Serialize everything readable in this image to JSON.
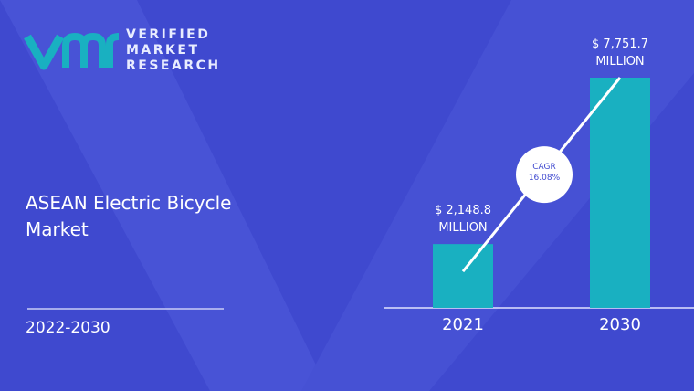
{
  "brand": {
    "line1": "VERIFIED",
    "line2": "MARKET",
    "line3": "RESEARCH"
  },
  "chart_data": {
    "type": "bar",
    "title": "ASEAN Electric Bicycle Market",
    "subtitle": "2022-2030",
    "categories": [
      "2021",
      "2030"
    ],
    "values": [
      2148.8,
      7751.7
    ],
    "value_labels": [
      "$ 2,148.8 MILLION",
      "$ 7,751.7 MILLION"
    ],
    "color": "#19b0c1",
    "annotation": {
      "label": "CAGR",
      "value_label": "16.08%"
    }
  }
}
